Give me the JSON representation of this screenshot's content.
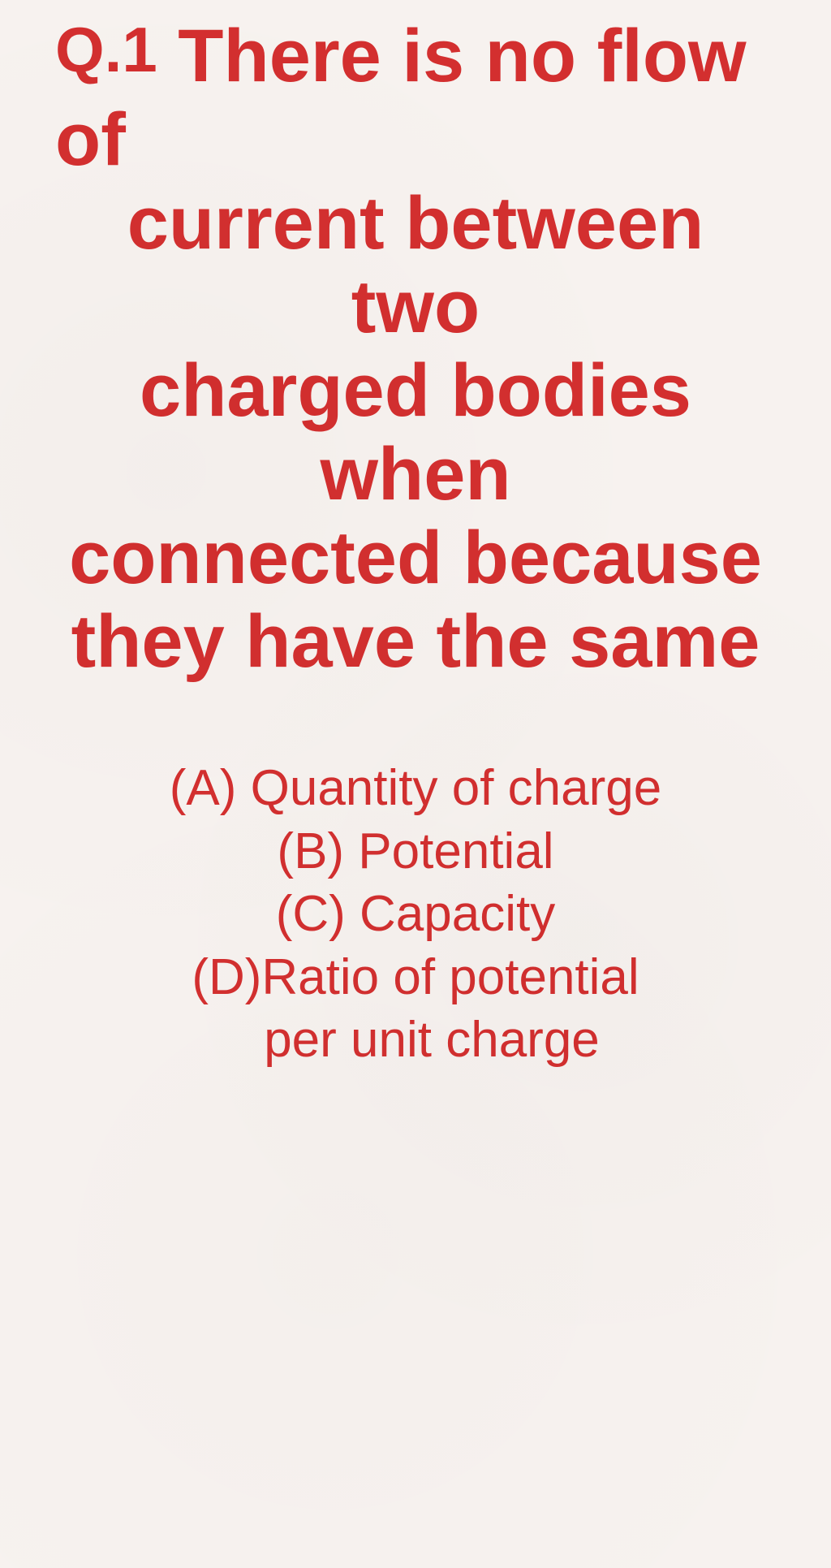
{
  "question": {
    "number": "Q.1",
    "line1_remainder": "There is no flow of",
    "line2": "current between two",
    "line3": "charged bodies when",
    "line4": "connected because",
    "line5": "they have the same"
  },
  "options": {
    "a": "(A) Quantity of charge",
    "b": "(B) Potential",
    "c": "(C) Capacity",
    "d_line1": "(D)Ratio of potential",
    "d_line2": "per unit charge"
  },
  "styles": {
    "text_color": "#d32f2f",
    "background_color": "#f7f2ef",
    "question_number_fontsize": 78,
    "question_fontsize": 92,
    "option_fontsize": 62,
    "font_family": "Arial, Helvetica, sans-serif"
  }
}
